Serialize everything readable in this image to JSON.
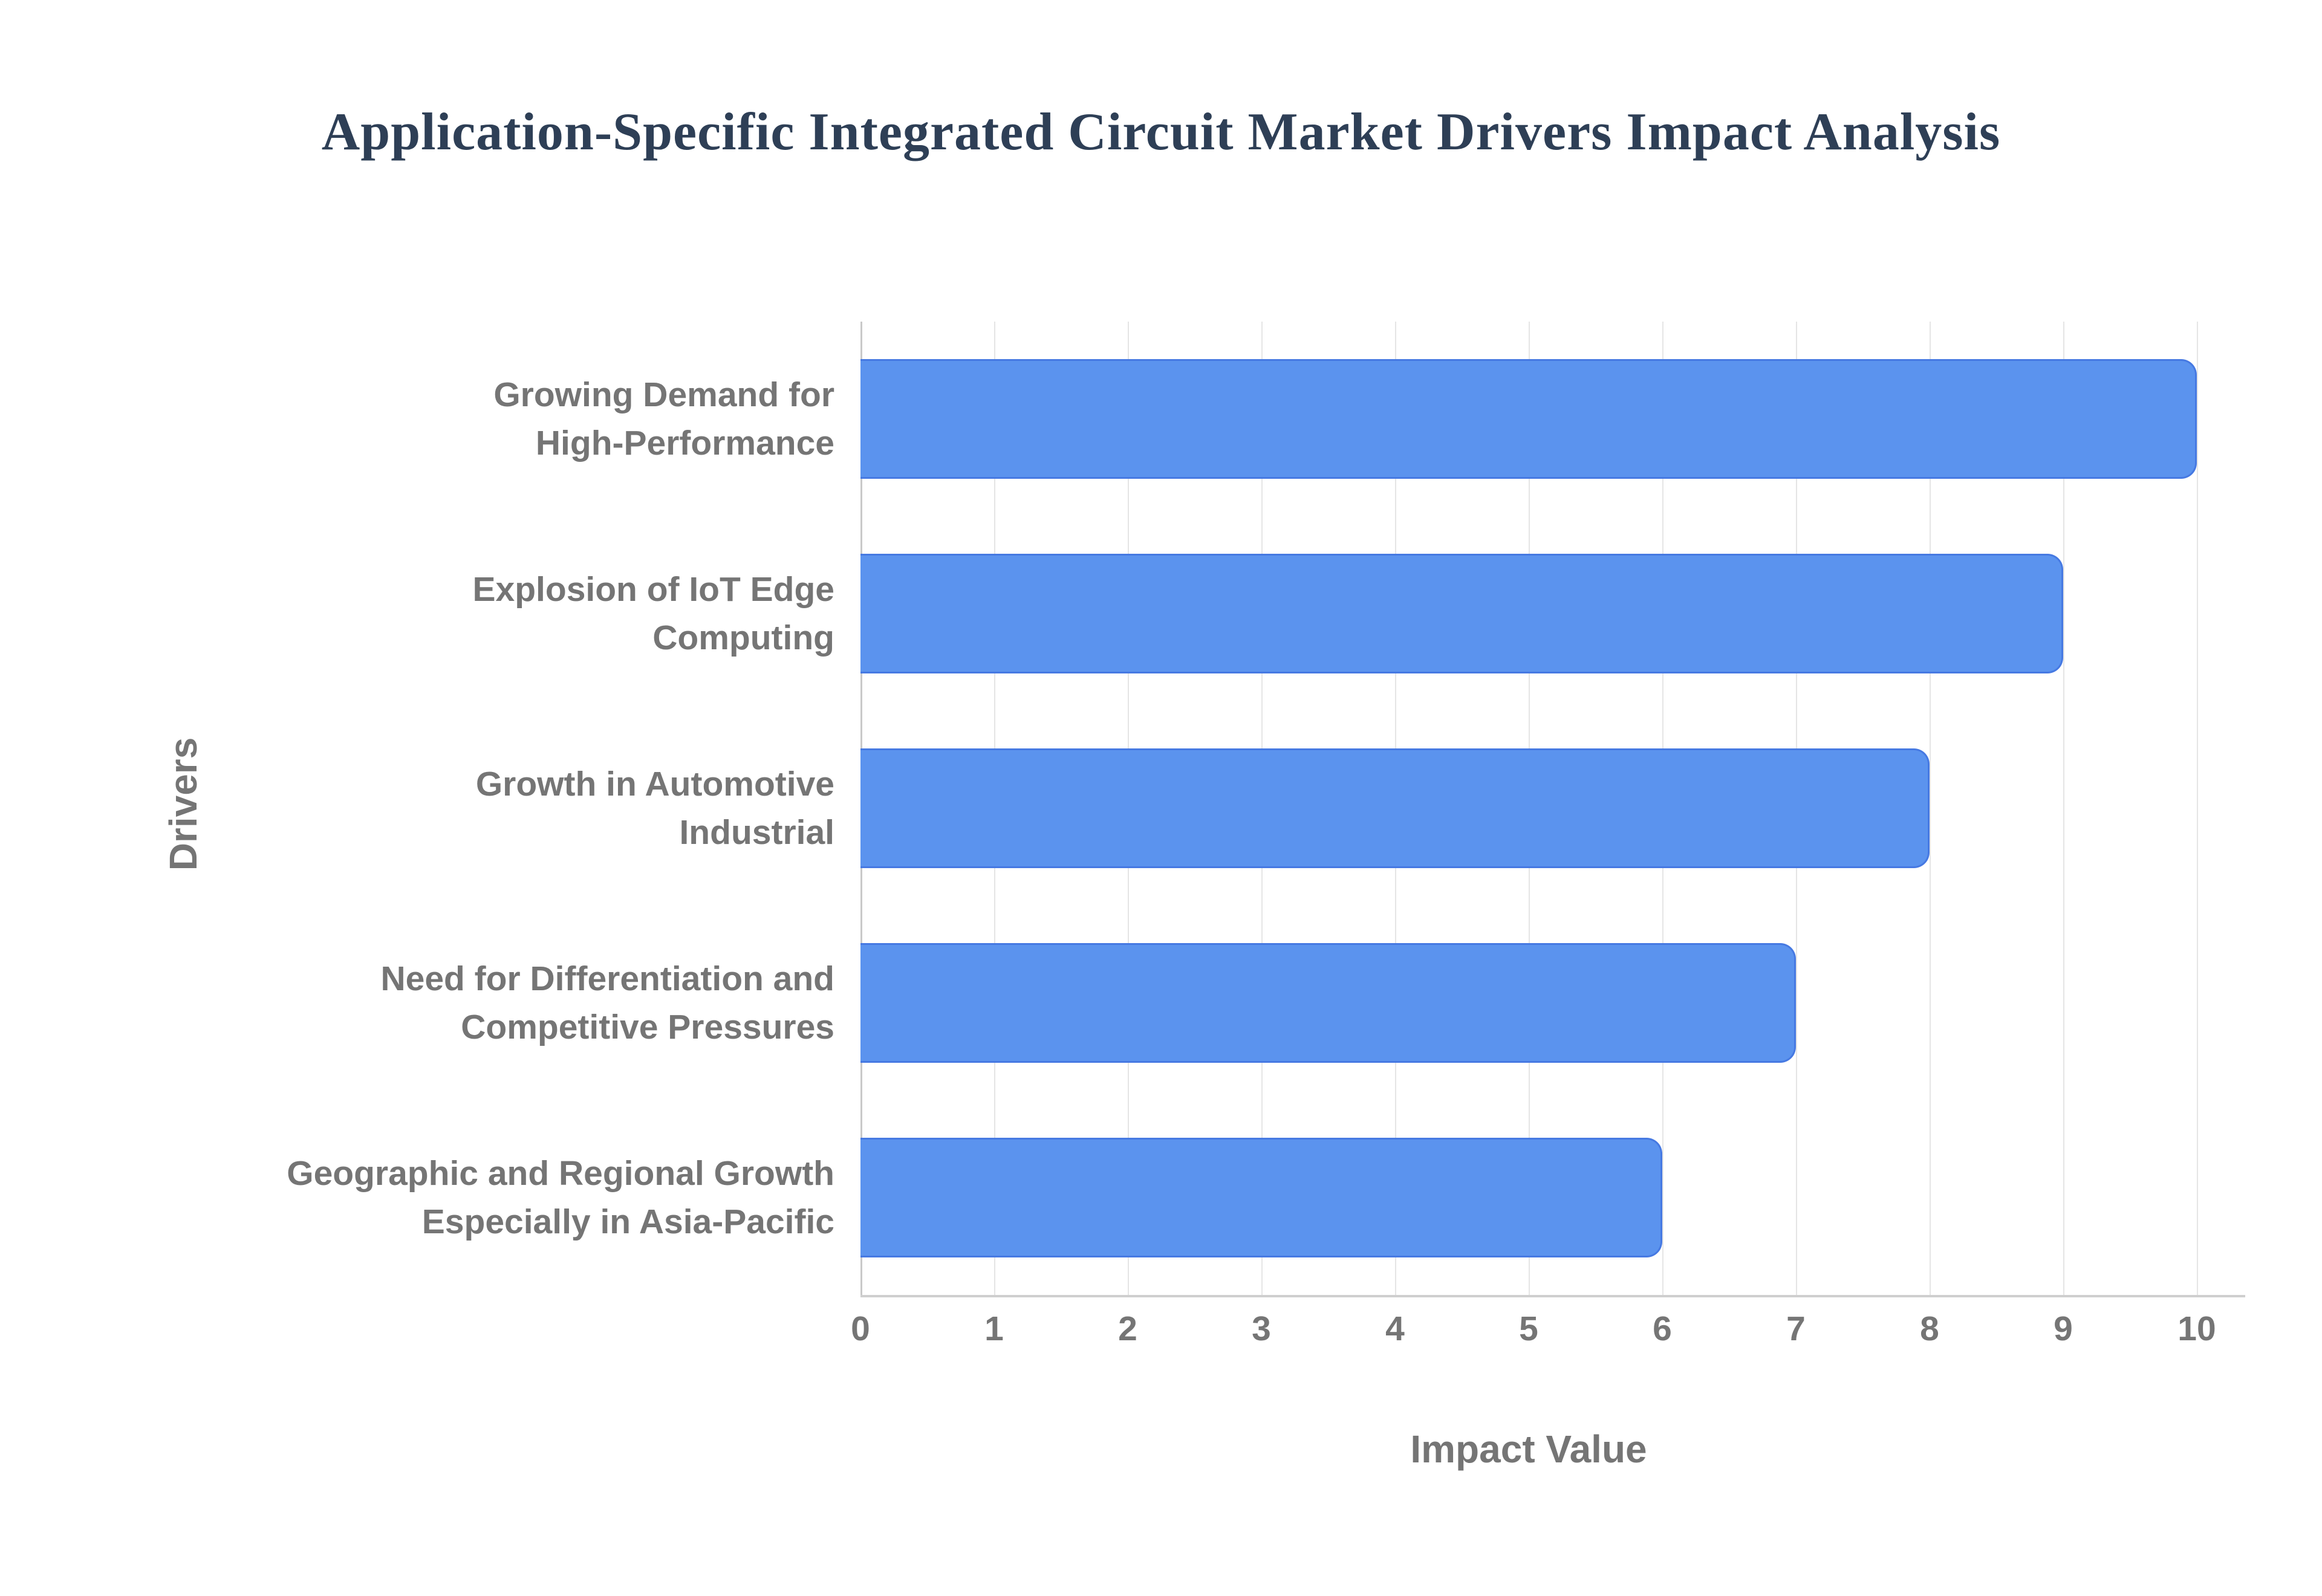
{
  "chart_data": {
    "type": "bar",
    "orientation": "horizontal",
    "title": "Application-Specific Integrated Circuit Market Drivers Impact Analysis",
    "categories": [
      "Growing Demand for High-Performance",
      "Explosion of IoT Edge Computing",
      "Growth in Automotive Industrial",
      "Need for Differentiation and Competitive Pressures",
      "Geographic and Regional Growth Especially in Asia-Pacific"
    ],
    "categories_lines": [
      [
        "Growing Demand for",
        "High-Performance"
      ],
      [
        "Explosion of IoT Edge",
        "Computing"
      ],
      [
        "Growth in Automotive",
        "Industrial"
      ],
      [
        "Need for Differentiation and",
        "Competitive Pressures"
      ],
      [
        "Geographic and Regional Growth",
        "Especially in Asia-Pacific"
      ]
    ],
    "values": [
      10,
      9,
      8,
      7,
      6
    ],
    "xlabel": "Impact Value",
    "ylabel": "Drivers",
    "xlim": [
      0,
      10
    ],
    "xticks": [
      "0",
      "1",
      "2",
      "3",
      "4",
      "5",
      "6",
      "7",
      "8",
      "9",
      "10"
    ],
    "grid": true,
    "legend": false,
    "colors": {
      "bar_fill": "#5b93ee",
      "bar_border": "#4679e2",
      "gridline": "#e5e5e5",
      "axis_line": "#c9c9c9",
      "title_text": "#2e3f56",
      "label_text": "#757575"
    }
  }
}
